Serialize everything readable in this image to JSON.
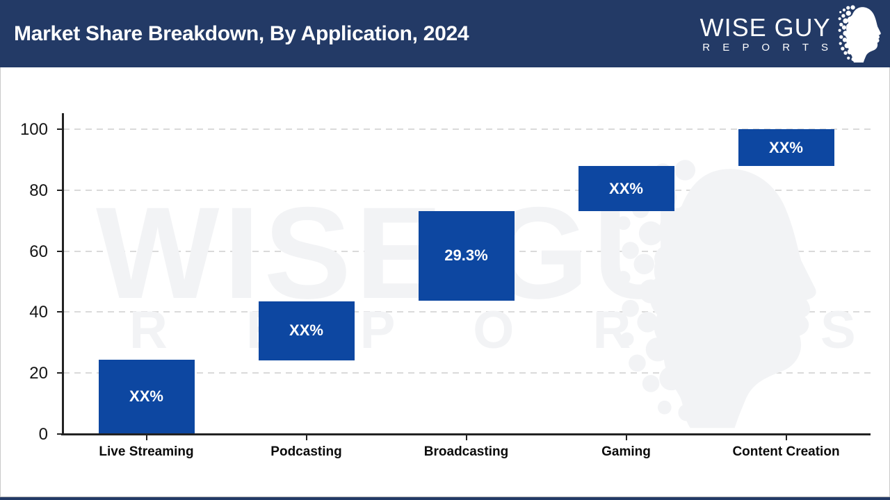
{
  "header": {
    "title": "Market Share Breakdown, By Application, 2024",
    "logo": {
      "line1": "WISE GUY",
      "line2": "R E P O R T S"
    }
  },
  "watermark": {
    "line1": "WISE GUY",
    "line2": "R E P O R T S"
  },
  "colors": {
    "header_background": "#233A66",
    "bar_blue": "#0D47A1",
    "bar_label_text": "#ffffff",
    "grid_gray": "#dadada",
    "axis_black": "#222222",
    "watermark_gray": "#f2f3f5"
  },
  "chart_data": {
    "type": "bar",
    "subtype": "floating-waterfall-segments",
    "title": "Market Share Breakdown, By Application, 2024",
    "categories": [
      "Live Streaming",
      "Podcasting",
      "Broadcasting",
      "Gaming",
      "Content Creation"
    ],
    "segments": [
      {
        "category": "Live Streaming",
        "start": 0,
        "end": 24.2,
        "label": "XX%"
      },
      {
        "category": "Podcasting",
        "start": 24.1,
        "end": 43.5,
        "label": "XX%"
      },
      {
        "category": "Broadcasting",
        "start": 43.8,
        "end": 73.1,
        "label": "29.3%"
      },
      {
        "category": "Gaming",
        "start": 73.1,
        "end": 87.9,
        "label": "XX%"
      },
      {
        "category": "Content Creation",
        "start": 87.9,
        "end": 100.0,
        "label": "XX%"
      }
    ],
    "yticks": [
      0,
      20,
      40,
      60,
      80,
      100
    ],
    "ylim": [
      0,
      105
    ],
    "xlabel": "",
    "ylabel": "",
    "grid": "dashed-horizontal",
    "legend": "none"
  }
}
